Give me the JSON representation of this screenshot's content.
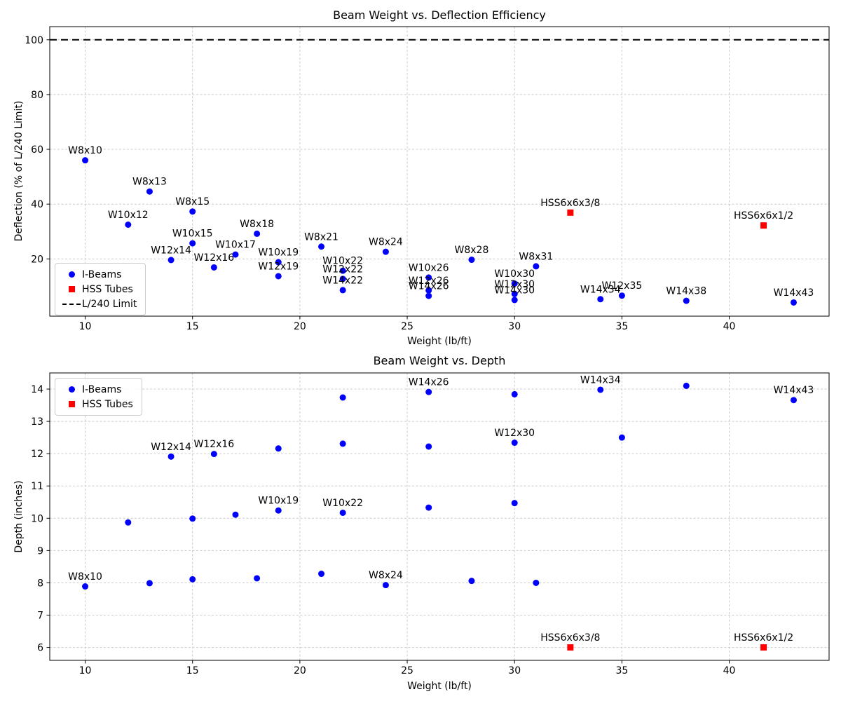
{
  "figure": {
    "background": "#ffffff",
    "accent_blue": "#0000ff",
    "accent_red": "#ff0000",
    "grid_color": "#cccccc"
  },
  "chart_data": [
    {
      "id": "deflection-chart",
      "type": "scatter",
      "title": "Beam Weight vs. Deflection Efficiency",
      "xlabel": "Weight (lb/ft)",
      "ylabel": "Deflection (% of L/240 Limit)",
      "xlim": [
        8.35,
        44.65
      ],
      "ylim": [
        -0.9,
        104.8
      ],
      "xticks": [
        10,
        15,
        20,
        25,
        30,
        35,
        40
      ],
      "yticks": [
        20,
        40,
        60,
        80,
        100
      ],
      "grid": true,
      "legend_position": "lower-left",
      "legend": [
        {
          "label": "I-Beams",
          "marker": "circle",
          "color": "#0000ff"
        },
        {
          "label": "HSS Tubes",
          "marker": "square",
          "color": "#ff0000"
        },
        {
          "label": "L/240 Limit",
          "marker": "dashed-line",
          "color": "#000000"
        }
      ],
      "hline": {
        "y": 100,
        "color": "#000000",
        "style": "dashed"
      },
      "series": [
        {
          "name": "I-Beams",
          "marker": "circle",
          "color": "#0000ff",
          "points": [
            {
              "label": "W8x10",
              "x": 10,
              "y": 56.0,
              "annotated": true
            },
            {
              "label": "W10x12",
              "x": 12,
              "y": 32.5,
              "annotated": true
            },
            {
              "label": "W8x13",
              "x": 13,
              "y": 44.6,
              "annotated": true
            },
            {
              "label": "W12x14",
              "x": 14,
              "y": 19.6,
              "annotated": true
            },
            {
              "label": "W8x15",
              "x": 15,
              "y": 37.3,
              "annotated": true
            },
            {
              "label": "W10x15",
              "x": 15,
              "y": 25.7,
              "annotated": true
            },
            {
              "label": "W12x16",
              "x": 16,
              "y": 16.9,
              "annotated": true
            },
            {
              "label": "W10x17",
              "x": 17,
              "y": 21.6,
              "annotated": true
            },
            {
              "label": "W8x18",
              "x": 18,
              "y": 29.2,
              "annotated": true
            },
            {
              "label": "W10x19",
              "x": 19,
              "y": 18.8,
              "annotated": true
            },
            {
              "label": "W12x19",
              "x": 19,
              "y": 13.7,
              "annotated": true
            },
            {
              "label": "W8x21",
              "x": 21,
              "y": 24.5,
              "annotated": true
            },
            {
              "label": "W10x22",
              "x": 22,
              "y": 15.7,
              "annotated": true
            },
            {
              "label": "W12x22",
              "x": 22,
              "y": 12.7,
              "annotated": true
            },
            {
              "label": "W14x22",
              "x": 22,
              "y": 8.6,
              "annotated": true
            },
            {
              "label": "W8x24",
              "x": 24,
              "y": 22.6,
              "annotated": true
            },
            {
              "label": "W10x26",
              "x": 26,
              "y": 13.2,
              "annotated": true
            },
            {
              "label": "W12x26",
              "x": 26,
              "y": 8.5,
              "annotated": true
            },
            {
              "label": "W14x26",
              "x": 26,
              "y": 6.5,
              "annotated": true
            },
            {
              "label": "W8x28",
              "x": 28,
              "y": 19.7,
              "annotated": true
            },
            {
              "label": "W10x30",
              "x": 30,
              "y": 11.0,
              "annotated": true
            },
            {
              "label": "W12x30",
              "x": 30,
              "y": 7.2,
              "annotated": true
            },
            {
              "label": "W14x30",
              "x": 30,
              "y": 5.0,
              "annotated": true
            },
            {
              "label": "W8x31",
              "x": 31,
              "y": 17.3,
              "annotated": true
            },
            {
              "label": "W14x34",
              "x": 34,
              "y": 5.3,
              "annotated": true
            },
            {
              "label": "W12x35",
              "x": 35,
              "y": 6.6,
              "annotated": true
            },
            {
              "label": "W14x38",
              "x": 38,
              "y": 4.7,
              "annotated": true
            },
            {
              "label": "W14x43",
              "x": 43,
              "y": 4.1,
              "annotated": true
            }
          ]
        },
        {
          "name": "HSS Tubes",
          "marker": "square",
          "color": "#ff0000",
          "points": [
            {
              "label": "HSS6x6x3/8",
              "x": 32.6,
              "y": 36.9,
              "annotated": true
            },
            {
              "label": "HSS6x6x1/2",
              "x": 41.6,
              "y": 32.2,
              "annotated": true
            }
          ]
        }
      ]
    },
    {
      "id": "depth-chart",
      "type": "scatter",
      "title": "Beam Weight vs. Depth",
      "xlabel": "Weight (lb/ft)",
      "ylabel": "Depth (inches)",
      "xlim": [
        8.35,
        44.65
      ],
      "ylim": [
        5.6,
        14.5
      ],
      "xticks": [
        10,
        15,
        20,
        25,
        30,
        35,
        40
      ],
      "yticks": [
        6,
        7,
        8,
        9,
        10,
        11,
        12,
        13,
        14
      ],
      "grid": true,
      "legend_position": "upper-left",
      "legend": [
        {
          "label": "I-Beams",
          "marker": "circle",
          "color": "#0000ff"
        },
        {
          "label": "HSS Tubes",
          "marker": "square",
          "color": "#ff0000"
        }
      ],
      "series": [
        {
          "name": "I-Beams",
          "marker": "circle",
          "color": "#0000ff",
          "points": [
            {
              "label": "W8x10",
              "x": 10,
              "y": 7.89,
              "annotated": true
            },
            {
              "label": "W10x12",
              "x": 12,
              "y": 9.87,
              "annotated": false
            },
            {
              "label": "W8x13",
              "x": 13,
              "y": 7.99,
              "annotated": false
            },
            {
              "label": "W12x14",
              "x": 14,
              "y": 11.91,
              "annotated": true
            },
            {
              "label": "W8x15",
              "x": 15,
              "y": 8.11,
              "annotated": false
            },
            {
              "label": "W10x15",
              "x": 15,
              "y": 9.99,
              "annotated": false
            },
            {
              "label": "W12x16",
              "x": 16,
              "y": 11.99,
              "annotated": true
            },
            {
              "label": "W10x17",
              "x": 17,
              "y": 10.11,
              "annotated": false
            },
            {
              "label": "W8x18",
              "x": 18,
              "y": 8.14,
              "annotated": false
            },
            {
              "label": "W10x19",
              "x": 19,
              "y": 10.24,
              "annotated": true
            },
            {
              "label": "W12x19",
              "x": 19,
              "y": 12.16,
              "annotated": false
            },
            {
              "label": "W8x21",
              "x": 21,
              "y": 8.28,
              "annotated": false
            },
            {
              "label": "W10x22",
              "x": 22,
              "y": 10.17,
              "annotated": true
            },
            {
              "label": "W12x22",
              "x": 22,
              "y": 12.31,
              "annotated": false
            },
            {
              "label": "W14x22",
              "x": 22,
              "y": 13.74,
              "annotated": false
            },
            {
              "label": "W8x24",
              "x": 24,
              "y": 7.93,
              "annotated": true
            },
            {
              "label": "W10x26",
              "x": 26,
              "y": 10.33,
              "annotated": false
            },
            {
              "label": "W12x26",
              "x": 26,
              "y": 12.22,
              "annotated": false
            },
            {
              "label": "W14x26",
              "x": 26,
              "y": 13.91,
              "annotated": true
            },
            {
              "label": "W8x28",
              "x": 28,
              "y": 8.06,
              "annotated": false
            },
            {
              "label": "W10x30",
              "x": 30,
              "y": 10.47,
              "annotated": false
            },
            {
              "label": "W12x30",
              "x": 30,
              "y": 12.34,
              "annotated": true
            },
            {
              "label": "W14x30",
              "x": 30,
              "y": 13.84,
              "annotated": false
            },
            {
              "label": "W8x31",
              "x": 31,
              "y": 8.0,
              "annotated": false
            },
            {
              "label": "W14x34",
              "x": 34,
              "y": 13.98,
              "annotated": true
            },
            {
              "label": "W12x35",
              "x": 35,
              "y": 12.5,
              "annotated": false
            },
            {
              "label": "W14x38",
              "x": 38,
              "y": 14.1,
              "annotated": false
            },
            {
              "label": "W14x43",
              "x": 43,
              "y": 13.66,
              "annotated": true
            }
          ]
        },
        {
          "name": "HSS Tubes",
          "marker": "square",
          "color": "#ff0000",
          "points": [
            {
              "label": "HSS6x6x3/8",
              "x": 32.6,
              "y": 6.0,
              "annotated": true
            },
            {
              "label": "HSS6x6x1/2",
              "x": 41.6,
              "y": 6.0,
              "annotated": true
            }
          ]
        }
      ]
    }
  ]
}
